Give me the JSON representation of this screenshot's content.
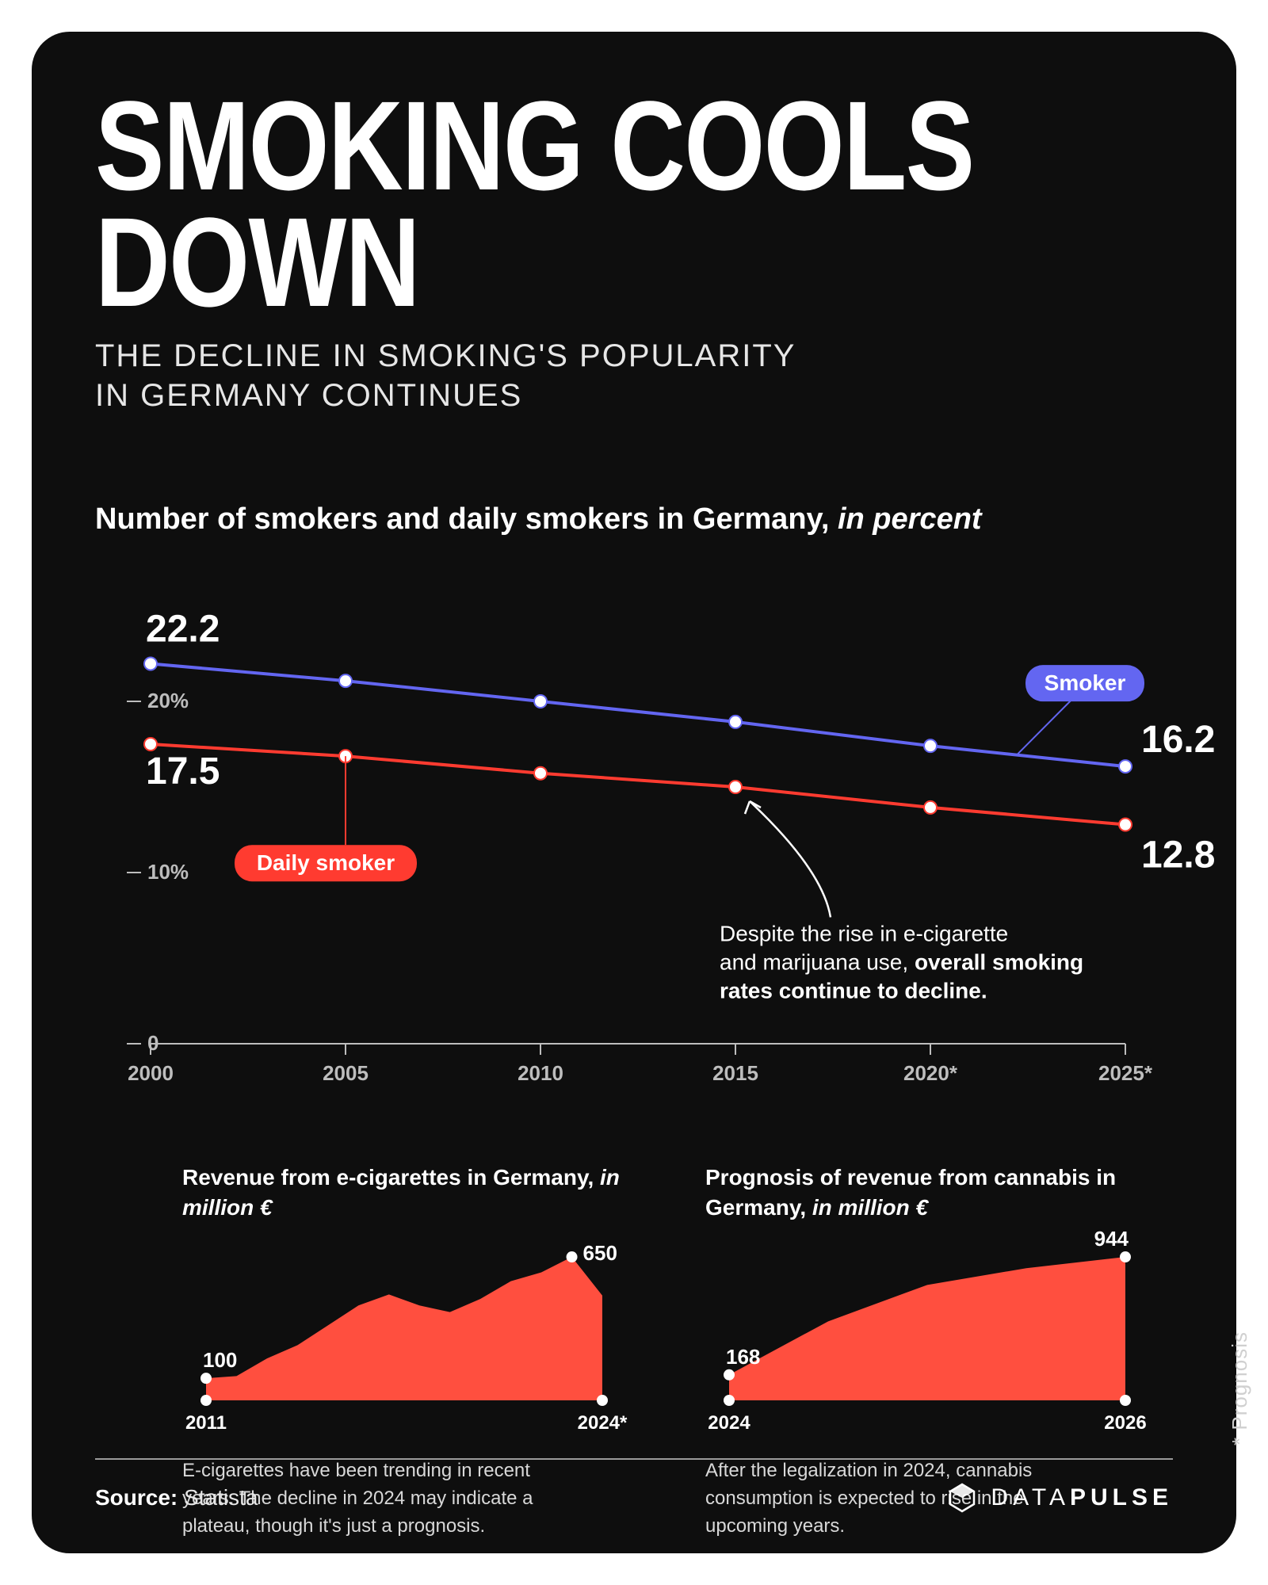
{
  "headline": "SMOKING COOLS DOWN",
  "subhead_line1": "THE DECLINE IN SMOKING'S POPULARITY",
  "subhead_line2": "IN GERMANY CONTINUES",
  "main_chart": {
    "title_plain": "Number of smokers and daily smokers in Germany, ",
    "title_ital": "in percent",
    "background": "#0e0e0e",
    "axis_color": "#bdbdbd",
    "axis_fontsize": 26,
    "ylim": [
      0,
      25
    ],
    "yticks": [
      {
        "v": 0,
        "label": "0"
      },
      {
        "v": 10,
        "label": "10%"
      },
      {
        "v": 20,
        "label": "20%"
      }
    ],
    "xticks": [
      "2000",
      "2005",
      "2010",
      "2015",
      "2020*",
      "2025*"
    ],
    "line_width": 4,
    "marker_radius": 8,
    "marker_fill": "#ffffff",
    "series": {
      "smoker": {
        "label": "Smoker",
        "color": "#6366f1",
        "badge_bg": "#6366f1",
        "badge_text": "#ffffff",
        "values": [
          22.2,
          21.2,
          20.0,
          18.8,
          17.4,
          16.2
        ],
        "start_label": "22.2",
        "end_label": "16.2"
      },
      "daily": {
        "label": "Daily smoker",
        "color": "#ff3b30",
        "badge_bg": "#ff3b30",
        "badge_text": "#ffffff",
        "values": [
          17.5,
          16.8,
          15.8,
          15.0,
          13.8,
          12.8
        ],
        "start_label": "17.5",
        "end_label": "12.8"
      }
    },
    "annotation_plain": "Despite the rise in e-cigarette and marijuana use, ",
    "annotation_bold": "overall smoking rates continue to decline.",
    "annotation_fontsize": 28
  },
  "mini": {
    "fill": "#ff4f3f",
    "marker_fill": "#ffffff",
    "label_color": "#ffffff",
    "label_fontsize": 26,
    "ecig": {
      "title_plain": "Revenue from e-cigarettes in Germany, ",
      "title_ital": "in million €",
      "values": [
        100,
        110,
        190,
        250,
        340,
        430,
        480,
        430,
        400,
        460,
        540,
        580,
        650,
        475
      ],
      "start_year": "2011",
      "end_year": "2024*",
      "start_value": "100",
      "peak_value": "650",
      "caption": "E-cigarettes have been trending in recent years. The decline in 2024 may indicate a plateau, though it's just a prognosis."
    },
    "cannabis": {
      "title_plain": "Prognosis of revenue from cannabis in Germany, ",
      "title_ital": "in million €",
      "values": [
        168,
        520,
        760,
        870,
        944
      ],
      "start_year": "2024",
      "end_year": "2026",
      "start_value": "168",
      "end_value": "944",
      "caption": "After the legalization in 2024, cannabis consumption is expected to rise in the upcoming years."
    }
  },
  "sidenote": "* Prognosis",
  "footer": {
    "source_label": "Source:",
    "source_value": "Statista",
    "brand_a": "DATA",
    "brand_b": "PULSE"
  }
}
